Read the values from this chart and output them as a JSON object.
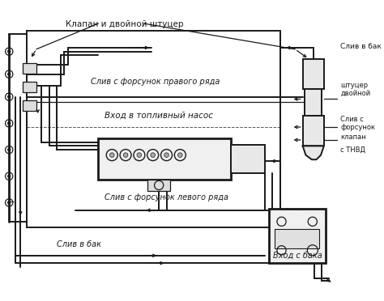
{
  "bg_color": "#ffffff",
  "line_color": "#1a1a1a",
  "labels": {
    "valve_fitting": "Клапан и двойной штуцер",
    "drain_right": "Слив с форсунок правого ряда",
    "fuel_pump_inlet": "Вход в топливный насос",
    "drain_left": "Слив с форсунок левого ряда",
    "drain_tank": "Слив в бак",
    "drain_tank_top": "Слив в бак",
    "fitting_double": "штуцер\nдвойной",
    "drain_injectors": "Слив с\nфорсунок",
    "valve": "клапан",
    "from_hpfp": "с ТНВД",
    "inlet_from_tank": "Вход с бака"
  },
  "fig_width": 4.74,
  "fig_height": 3.72,
  "dpi": 100
}
